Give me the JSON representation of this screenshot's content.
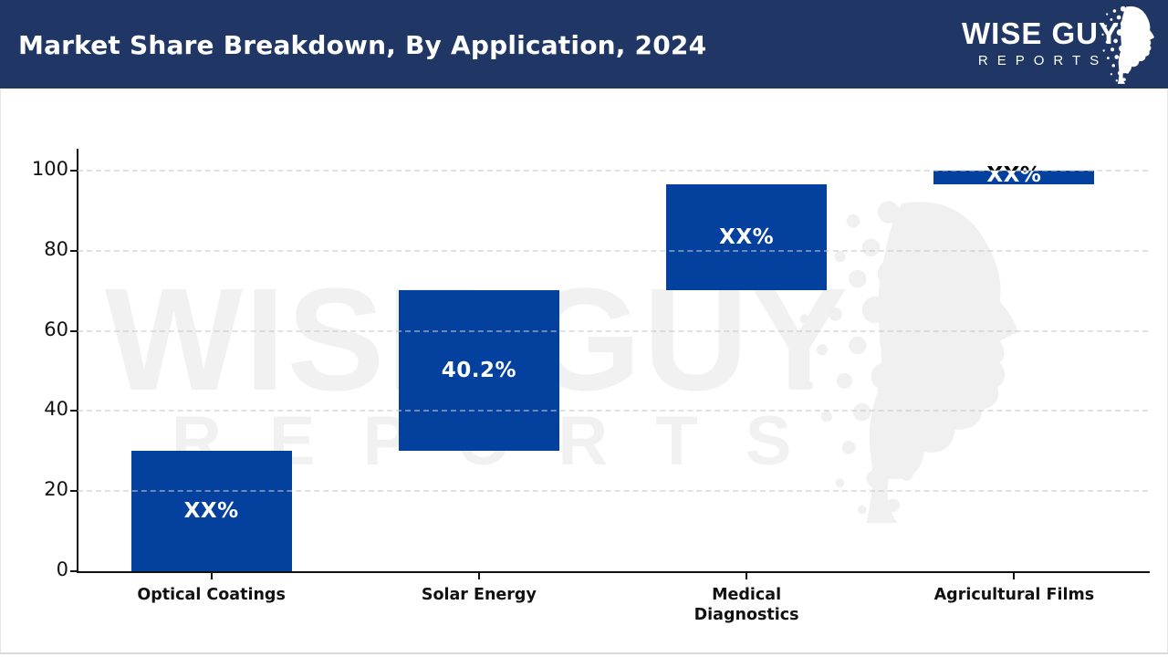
{
  "header": {
    "title": "Market Share Breakdown, By Application, 2024",
    "logo": {
      "line1": "WISE GUY",
      "line2": "REPORTS"
    }
  },
  "watermark": {
    "line1": "WISE GUY",
    "line2": "REPORTS"
  },
  "chart_data": {
    "type": "bar",
    "variant": "floating-waterfall",
    "title": "Market Share Breakdown, By Application, 2024",
    "categories": [
      "Optical Coatings",
      "Solar Energy",
      "Medical\nDiagnostics",
      "Agricultural Films"
    ],
    "segments": [
      {
        "category": "Optical Coatings",
        "start": 0,
        "end": 30,
        "value": 30,
        "label": "XX%",
        "label_style": "inside-white"
      },
      {
        "category": "Solar Energy",
        "start": 30,
        "end": 70.2,
        "value": 40.2,
        "label": "40.2%",
        "label_style": "inside-white"
      },
      {
        "category": "Medical\nDiagnostics",
        "start": 70.2,
        "end": 96.5,
        "value": 26.3,
        "label": "XX%",
        "label_style": "inside-white"
      },
      {
        "category": "Agricultural Films",
        "start": 96.5,
        "end": 100,
        "value": 3.5,
        "label": "XX%",
        "label_style": "straddle-top"
      }
    ],
    "xlabel": "",
    "ylabel": "",
    "ylim": [
      0,
      100
    ],
    "yticks": [
      0,
      20,
      40,
      60,
      80,
      100
    ],
    "grid": "dashed-horizontal-light-gray",
    "legend": "none",
    "colors": {
      "bar": "#04419e",
      "axis": "#111111",
      "grid": "#e3e3e3",
      "header_bg": "#203765",
      "header_text": "#ffffff",
      "watermark": "#f1f1f1",
      "label_inside": "#ffffff",
      "label_outside": "#000000"
    }
  }
}
